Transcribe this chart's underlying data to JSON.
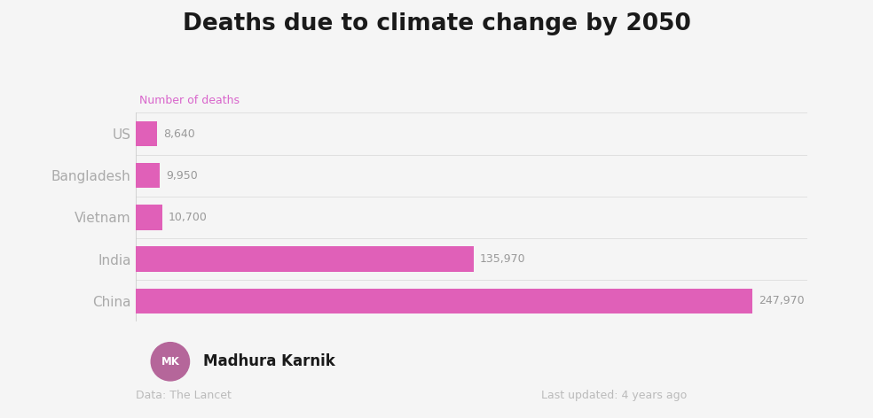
{
  "title": "Deaths due to climate change by 2050",
  "axis_label": "Number of deaths",
  "categories": [
    "China",
    "India",
    "Vietnam",
    "Bangladesh",
    "US"
  ],
  "values": [
    247970,
    135970,
    10700,
    9950,
    8640
  ],
  "value_labels": [
    "247,970",
    "135,970",
    "10,700",
    "9,950",
    "8,640"
  ],
  "bar_color": "#e060b8",
  "axis_label_color": "#d966cc",
  "title_color": "#1a1a1a",
  "bg_color": "#f5f5f5",
  "ytick_color": "#aaaaaa",
  "value_label_color": "#999999",
  "author_name": "Madhura Karnik",
  "author_initials": "MK",
  "author_circle_color": "#b5669a",
  "data_source": "Data: The Lancet",
  "last_updated": "Last updated: 4 years ago",
  "footnote_color": "#bbbbbb",
  "xlim": [
    0,
    270000
  ]
}
